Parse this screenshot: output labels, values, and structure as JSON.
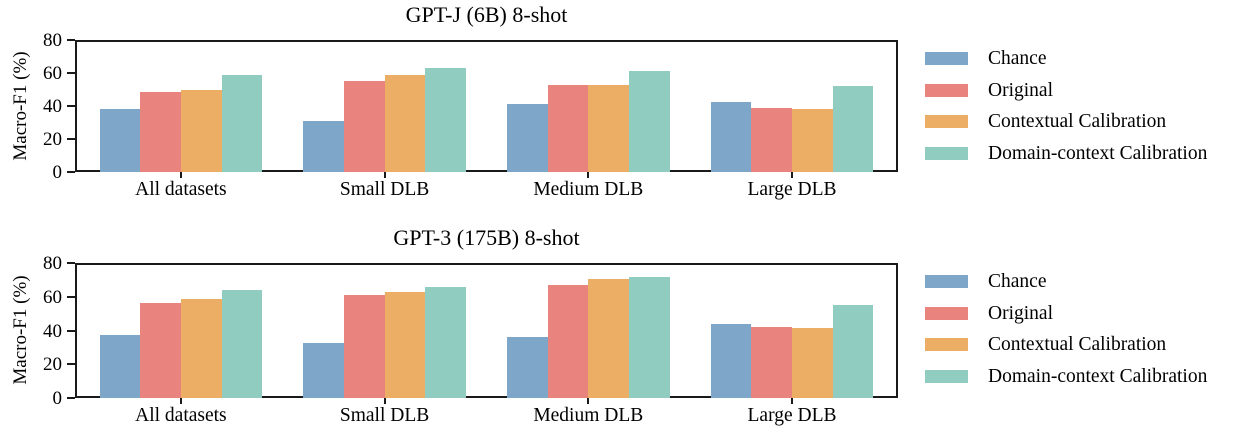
{
  "figure": {
    "background": "#ffffff",
    "axis_color": "#1a1a1a",
    "text_color": "#000000"
  },
  "legend": {
    "position": "right-of-plot",
    "items": [
      {
        "label": "Chance",
        "color": "#7EA6C9"
      },
      {
        "label": "Original",
        "color": "#E9837E"
      },
      {
        "label": "Contextual Calibration",
        "color": "#ECAE64"
      },
      {
        "label": "Domain-context Calibration",
        "color": "#90CCBF"
      }
    ]
  },
  "chart_data": [
    {
      "type": "bar",
      "title": "GPT-J (6B) 8-shot",
      "xlabel": "",
      "ylabel": "Macro-F1 (%)",
      "ylim": [
        0,
        80
      ],
      "yticks": [
        0,
        20,
        40,
        60,
        80
      ],
      "grid": false,
      "legend_position": "right",
      "categories": [
        "All datasets",
        "Small DLB",
        "Medium DLB",
        "Large DLB"
      ],
      "series": [
        {
          "name": "Chance",
          "color": "#7EA6C9",
          "values": [
            38,
            31,
            41,
            42.5
          ]
        },
        {
          "name": "Original",
          "color": "#E9837E",
          "values": [
            48.5,
            55,
            52.5,
            39
          ]
        },
        {
          "name": "Contextual Calibration",
          "color": "#ECAE64",
          "values": [
            50,
            58.5,
            53,
            38
          ]
        },
        {
          "name": "Domain-context Calibration",
          "color": "#90CCBF",
          "values": [
            59,
            63,
            61.5,
            52
          ]
        }
      ]
    },
    {
      "type": "bar",
      "title": "GPT-3 (175B) 8-shot",
      "xlabel": "",
      "ylabel": "Macro-F1 (%)",
      "ylim": [
        0,
        80
      ],
      "yticks": [
        0,
        20,
        40,
        60,
        80
      ],
      "grid": false,
      "legend_position": "right",
      "categories": [
        "All datasets",
        "Small DLB",
        "Medium DLB",
        "Large DLB"
      ],
      "series": [
        {
          "name": "Chance",
          "color": "#7EA6C9",
          "values": [
            37.5,
            32.5,
            36,
            44
          ]
        },
        {
          "name": "Original",
          "color": "#E9837E",
          "values": [
            56.5,
            61,
            67,
            42
          ]
        },
        {
          "name": "Contextual Calibration",
          "color": "#ECAE64",
          "values": [
            58.5,
            63,
            70.5,
            41.5
          ]
        },
        {
          "name": "Domain-context Calibration",
          "color": "#90CCBF",
          "values": [
            64,
            65.5,
            72,
            55
          ]
        }
      ]
    }
  ]
}
